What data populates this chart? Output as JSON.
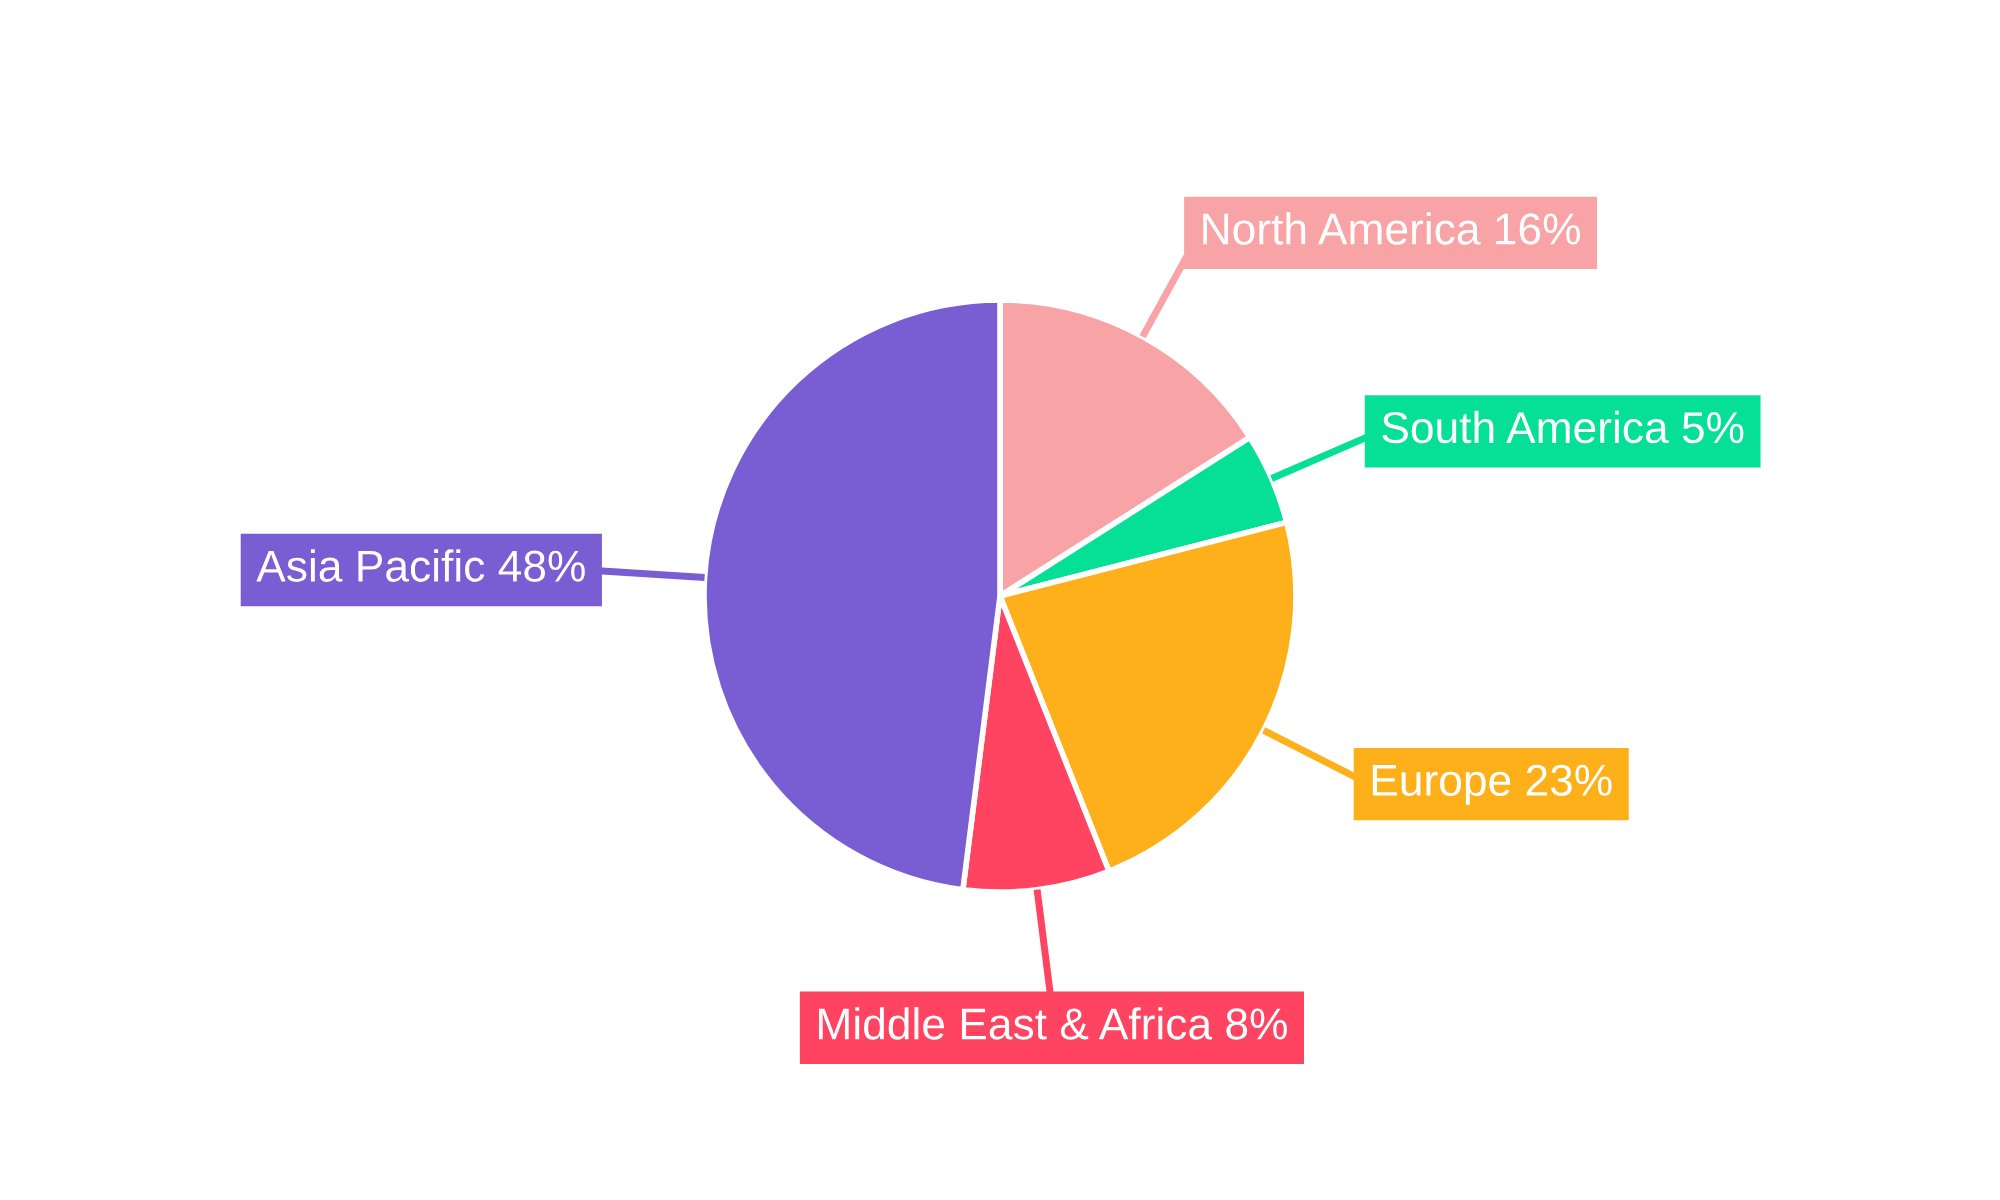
{
  "chart_data": {
    "type": "pie",
    "categories": [
      "North America",
      "South America",
      "Europe",
      "Middle East & Africa",
      "Asia Pacific"
    ],
    "values": [
      16,
      5,
      23,
      8,
      48
    ],
    "value_labels": [
      "16%",
      "5%",
      "23%",
      "8%",
      "48%"
    ],
    "colors": [
      "#f8a4a6",
      "#06e097",
      "#fdb019",
      "#fe4460",
      "#785ed2"
    ]
  }
}
